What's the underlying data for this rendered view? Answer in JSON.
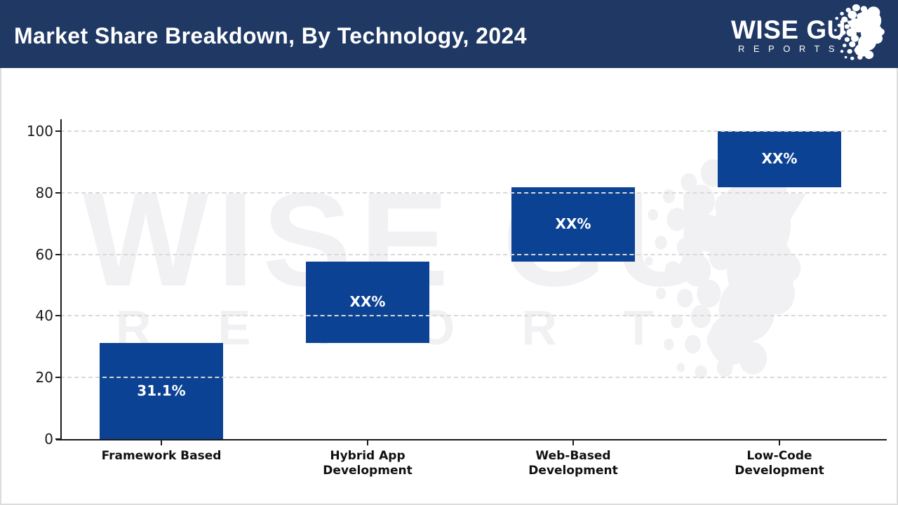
{
  "header": {
    "title": "Market Share Breakdown, By Technology, 2024",
    "logo": {
      "line1": "WISE GUY",
      "line2": "REPORTS"
    }
  },
  "watermark": {
    "line1": "WISE GUY",
    "line2": "REPORTS"
  },
  "colors": {
    "header_bg": "#1f3864",
    "bar": "#0b4293",
    "bar_label": "#ffffff",
    "grid": "#d9d9d9",
    "axis": "#1a1a1a",
    "watermark": "#f1f1f3"
  },
  "chart_data": {
    "type": "bar",
    "subtype": "waterfall",
    "title": "Market Share Breakdown, By Technology, 2024",
    "categories": [
      "Framework Based",
      "Hybrid App\nDevelopment",
      "Web-Based\nDevelopment",
      "Low-Code\nDevelopment"
    ],
    "segments": [
      {
        "category": "Framework Based",
        "start": 0,
        "end": 31.1,
        "label": "31.1%"
      },
      {
        "category": "Hybrid App Development",
        "start": 31.1,
        "end": 57.7,
        "label": "XX%"
      },
      {
        "category": "Web-Based Development",
        "start": 57.7,
        "end": 81.8,
        "label": "XX%"
      },
      {
        "category": "Low-Code Development",
        "start": 81.8,
        "end": 100,
        "label": "XX%"
      }
    ],
    "ylim": [
      0,
      100
    ],
    "yticks": [
      0,
      20,
      40,
      60,
      80,
      100
    ],
    "xlabel": "",
    "ylabel": "",
    "grid": "horizontal-dashed",
    "legend": "none"
  }
}
